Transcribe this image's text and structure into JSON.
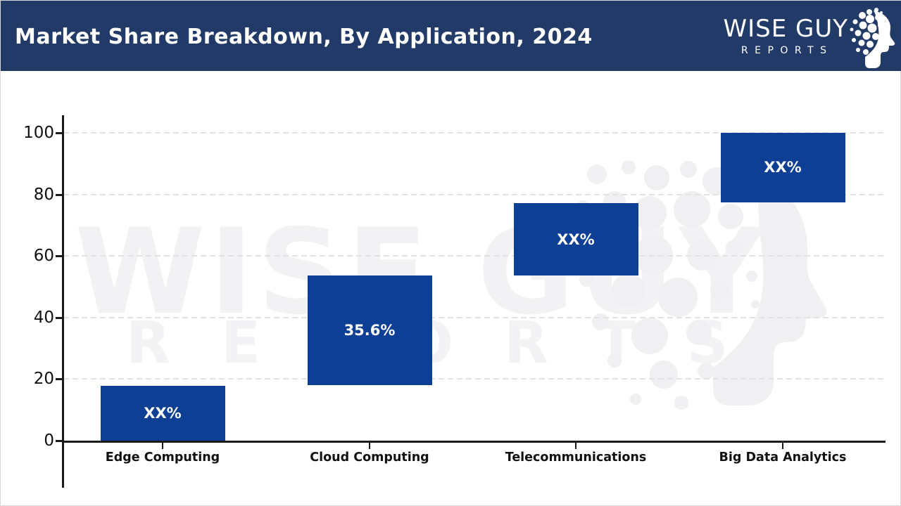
{
  "header": {
    "title": "Market Share Breakdown, By Application, 2024",
    "bg_color": "#213a67",
    "logo": {
      "wordmark": "WISE GUY",
      "subtext": "REPORTS"
    }
  },
  "watermark": {
    "wordmark": "WISE GUY",
    "subtext": "REPORTS"
  },
  "chart_data": {
    "type": "bar",
    "subtype": "floating-segment waterfall of market share",
    "title": "Market Share Breakdown, By Application, 2024",
    "categories": [
      "Edge Computing",
      "Cloud Computing",
      "Telecommunications",
      "Big Data Analytics"
    ],
    "segments": [
      {
        "category": "Edge Computing",
        "start": 0,
        "end": 17.8,
        "size": 17.8,
        "label": "XX%"
      },
      {
        "category": "Cloud Computing",
        "start": 18.0,
        "end": 53.6,
        "size": 35.6,
        "label": "35.6%"
      },
      {
        "category": "Telecommunications",
        "start": 53.6,
        "end": 77.2,
        "size": 23.6,
        "label": "XX%"
      },
      {
        "category": "Big Data Analytics",
        "start": 77.4,
        "end": 100,
        "size": 22.6,
        "label": "XX%"
      }
    ],
    "xlabel": "",
    "ylabel": "",
    "yticks": [
      0,
      20,
      40,
      60,
      80,
      100
    ],
    "ylim": [
      0,
      105
    ],
    "grid": "horizontal dashed",
    "legend": "none",
    "bar_color": "#0d4094",
    "bar_label_color": "#ffffff"
  }
}
